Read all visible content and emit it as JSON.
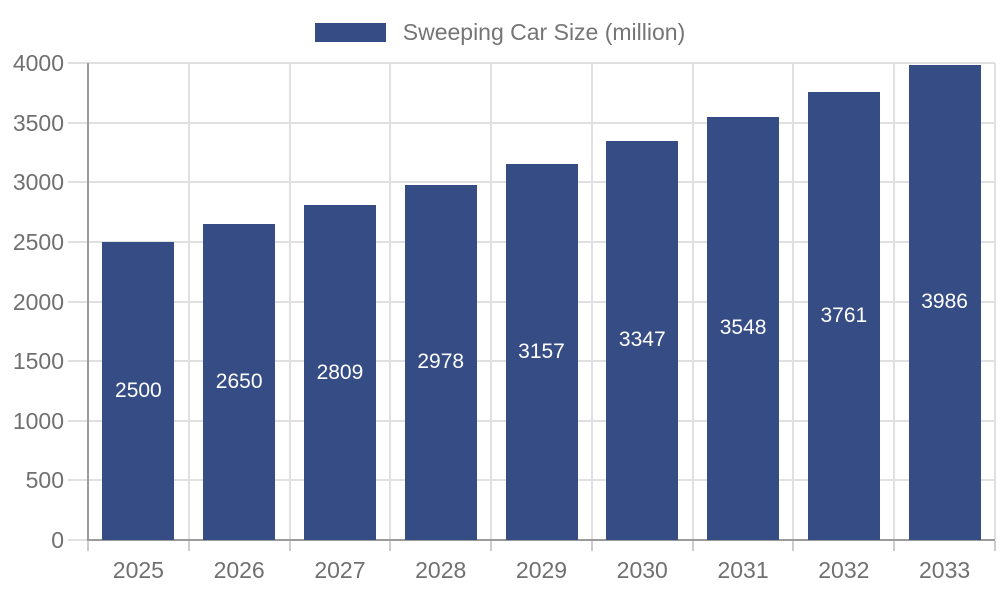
{
  "legend": {
    "position": "top-center",
    "items": [
      {
        "label": "Sweeping Car Size (million)",
        "swatch_color": "#364C85"
      }
    ]
  },
  "chart_data": {
    "type": "bar",
    "title": "",
    "categories": [
      "2025",
      "2026",
      "2027",
      "2028",
      "2029",
      "2030",
      "2031",
      "2032",
      "2033"
    ],
    "series": [
      {
        "name": "Sweeping Car Size (million)",
        "color": "#364C85",
        "values": [
          2500,
          2650,
          2809,
          2978,
          3157,
          3347,
          3548,
          3761,
          3986
        ]
      }
    ],
    "xlabel": "",
    "ylabel": "",
    "ylim": [
      0,
      4000
    ],
    "y_ticks": [
      0,
      500,
      1000,
      1500,
      2000,
      2500,
      3000,
      3500,
      4000
    ],
    "grid": true,
    "legend_position": "top",
    "value_labels": {
      "position": "inside-center",
      "color": "#ffffff"
    },
    "colors": {
      "bar": "#364C85",
      "grid_line": "#e0e0e0",
      "axis_line": "#9b9b9b",
      "tick_line": "#cccccc",
      "axis_text": "#707070",
      "legend_text": "#757575",
      "background": "#ffffff"
    }
  }
}
